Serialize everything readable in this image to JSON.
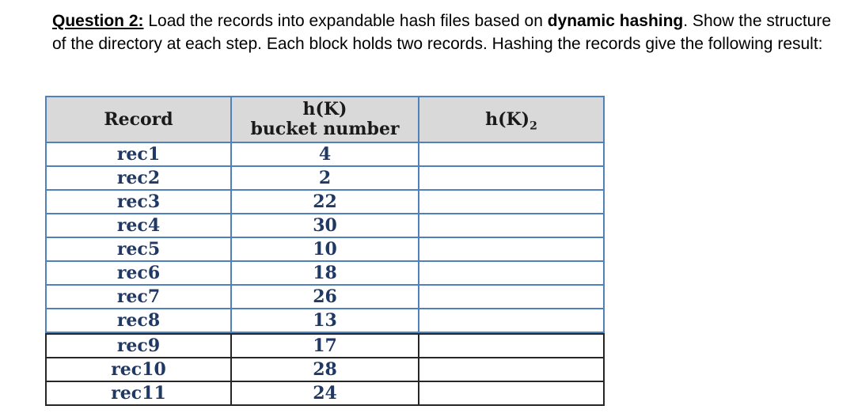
{
  "intro": {
    "label": "Question 2:",
    "text_after_label": " Load the records into expandable hash files based on ",
    "bold_phrase": "dynamic hashing",
    "text_rest": ". Show the structure of the directory at each step. Each block holds two records. Hashing the records give the following result:"
  },
  "table": {
    "headers": {
      "record": "Record",
      "hk_line1": "h(K)",
      "hk_line2": "bucket number",
      "hk2_base": "h(K)",
      "hk2_sub": "2"
    },
    "rows": [
      {
        "record": "rec1",
        "bucket": "4",
        "hk2": ""
      },
      {
        "record": "rec2",
        "bucket": "2",
        "hk2": ""
      },
      {
        "record": "rec3",
        "bucket": "22",
        "hk2": ""
      },
      {
        "record": "rec4",
        "bucket": "30",
        "hk2": ""
      },
      {
        "record": "rec5",
        "bucket": "10",
        "hk2": ""
      },
      {
        "record": "rec6",
        "bucket": "18",
        "hk2": ""
      },
      {
        "record": "rec7",
        "bucket": "26",
        "hk2": ""
      },
      {
        "record": "rec8",
        "bucket": "13",
        "hk2": ""
      },
      {
        "record": "rec9",
        "bucket": "17",
        "hk2": ""
      },
      {
        "record": "rec10",
        "bucket": "28",
        "hk2": ""
      },
      {
        "record": "rec11",
        "bucket": "24",
        "hk2": ""
      }
    ],
    "colors": {
      "border_blue": "#4f81bd",
      "border_dark": "#262626",
      "header_bg": "#d9d9d9",
      "cell_text": "#1f3864",
      "header_text": "#1a1a1a"
    }
  }
}
